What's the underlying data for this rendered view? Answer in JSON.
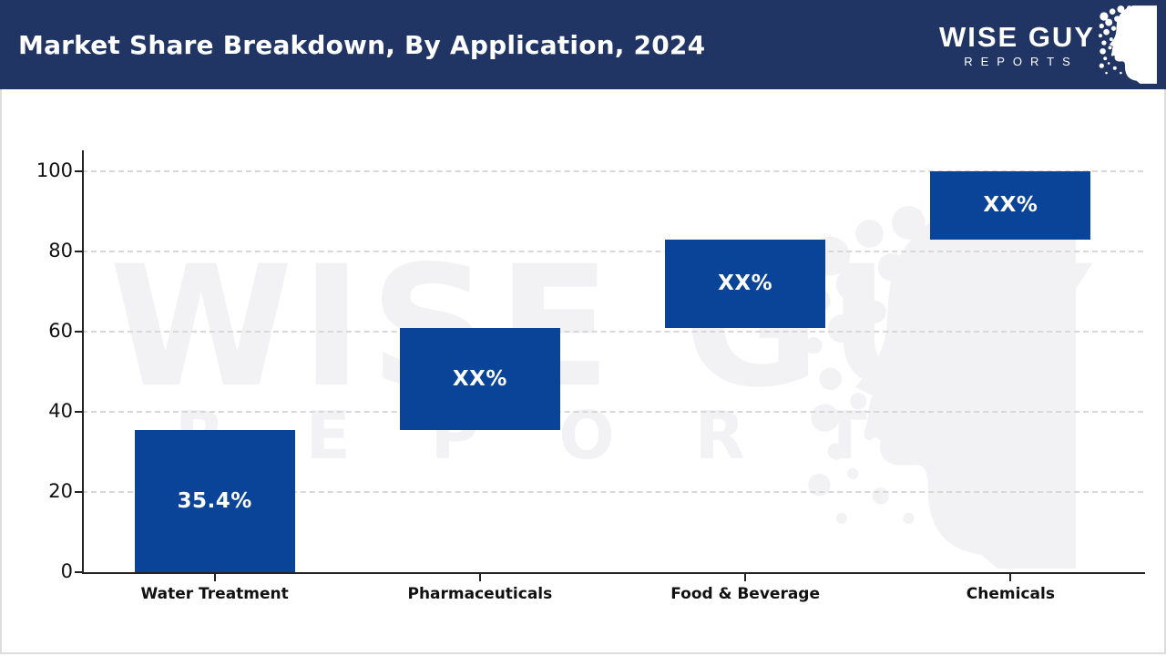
{
  "header": {
    "title": "Market Share Breakdown, By Application, 2024",
    "logo": {
      "line1": "WISE GUY",
      "line2": "REPORTS",
      "face_icon": "dotted-face-profile"
    }
  },
  "watermark": {
    "line1": "WISE GUY",
    "line2": "REPORTS",
    "face_icon": "dotted-face-profile"
  },
  "colors": {
    "header_bg": "#213564",
    "header_text": "#ffffff",
    "bar": "#0a4499",
    "bar_label": "#ffffff",
    "grid": "#d8d8d8",
    "axis": "#222222",
    "tick_text": "#111111",
    "watermark": "#f2f2f5",
    "canvas_bg": "#ffffff"
  },
  "chart_data": {
    "type": "bar",
    "subtype": "waterfall",
    "title": "Market Share Breakdown, By Application, 2024",
    "categories": [
      "Water Treatment",
      "Pharmaceuticals",
      "Food & Beverage",
      "Chemicals"
    ],
    "segments": [
      {
        "category": "Water Treatment",
        "start": 0,
        "end": 35.4,
        "label": "35.4%"
      },
      {
        "category": "Pharmaceuticals",
        "start": 35.4,
        "end": 61,
        "label": "XX%"
      },
      {
        "category": "Food & Beverage",
        "start": 61,
        "end": 83,
        "label": "XX%"
      },
      {
        "category": "Chemicals",
        "start": 83,
        "end": 100,
        "label": "XX%"
      }
    ],
    "yticks": [
      0,
      20,
      40,
      60,
      80,
      100
    ],
    "ylim": [
      0,
      104
    ],
    "xlabel": "",
    "ylabel": "",
    "grid": "horizontal-dashed",
    "legend": "none",
    "bar_color": "#0a4499",
    "bar_label_color": "#ffffff"
  }
}
